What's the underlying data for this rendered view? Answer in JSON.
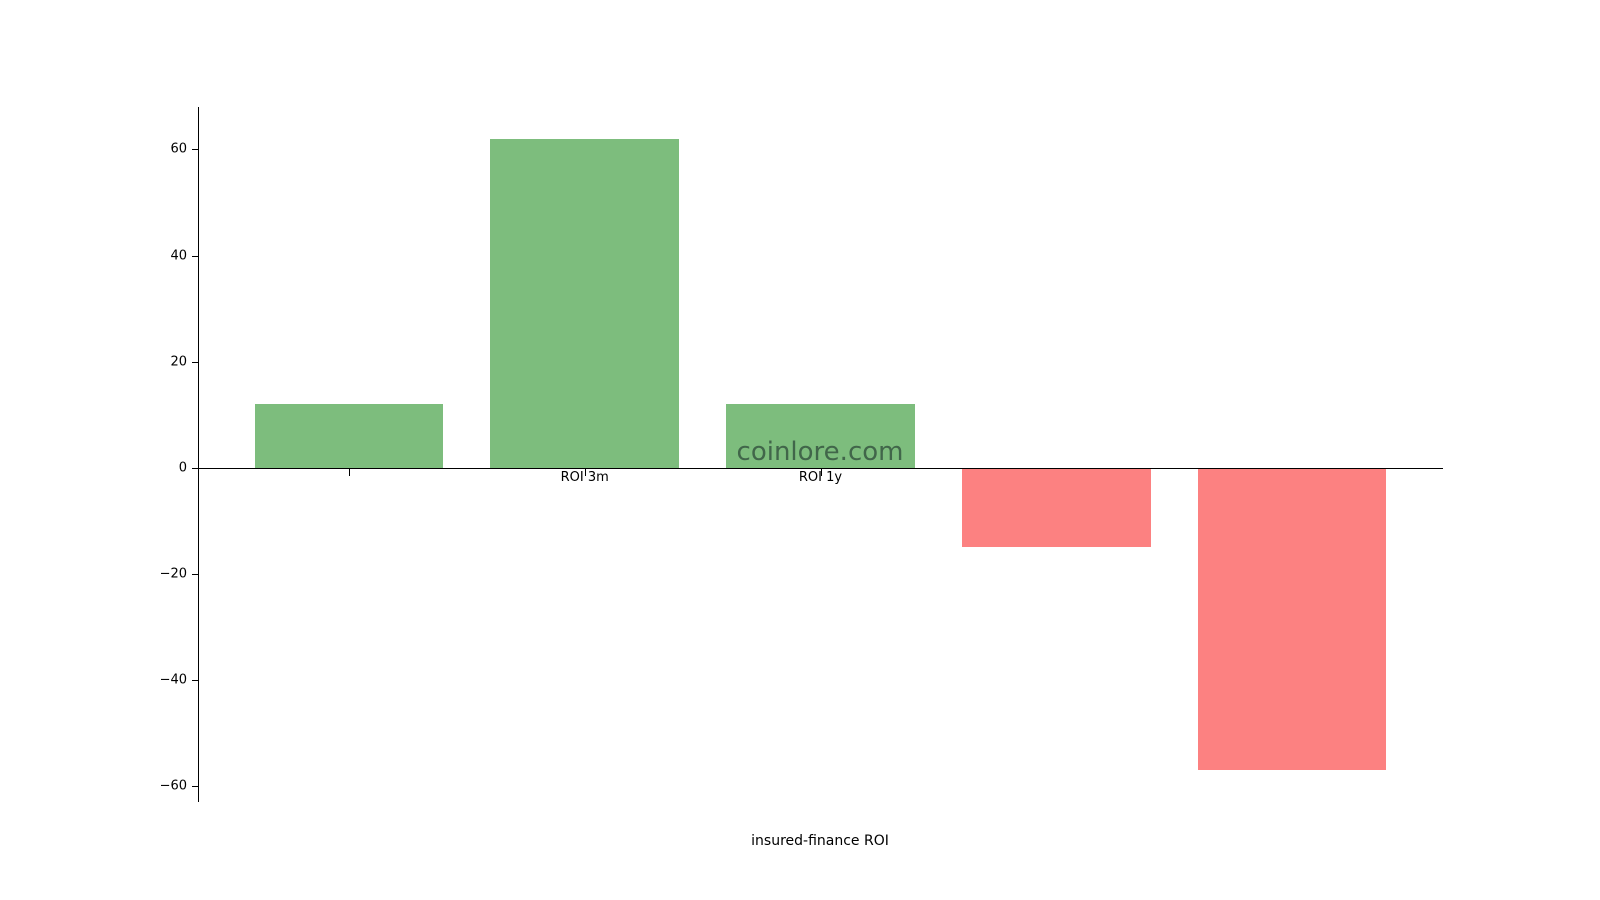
{
  "chart_data": {
    "type": "bar",
    "title": "",
    "xlabel": "insured-finance ROI",
    "ylabel": "",
    "categories": [
      "",
      "ROI 3m",
      "ROI 1y",
      null,
      null
    ],
    "values": [
      12,
      62,
      12,
      -15,
      -57
    ],
    "ylim": [
      -63,
      68
    ],
    "yticks": [
      {
        "value": -60,
        "label": "−60"
      },
      {
        "value": -40,
        "label": "−40"
      },
      {
        "value": -20,
        "label": "−20"
      },
      {
        "value": 0,
        "label": "0"
      },
      {
        "value": 20,
        "label": "20"
      },
      {
        "value": 40,
        "label": "40"
      },
      {
        "value": 60,
        "label": "60"
      }
    ],
    "grid": false,
    "legend_position": "none",
    "colors": {
      "positive": "#7dbd7d",
      "negative": "#fc8181",
      "axis": "#000000",
      "watermark_text": "#41664a"
    },
    "watermark": "coinlore.com"
  }
}
